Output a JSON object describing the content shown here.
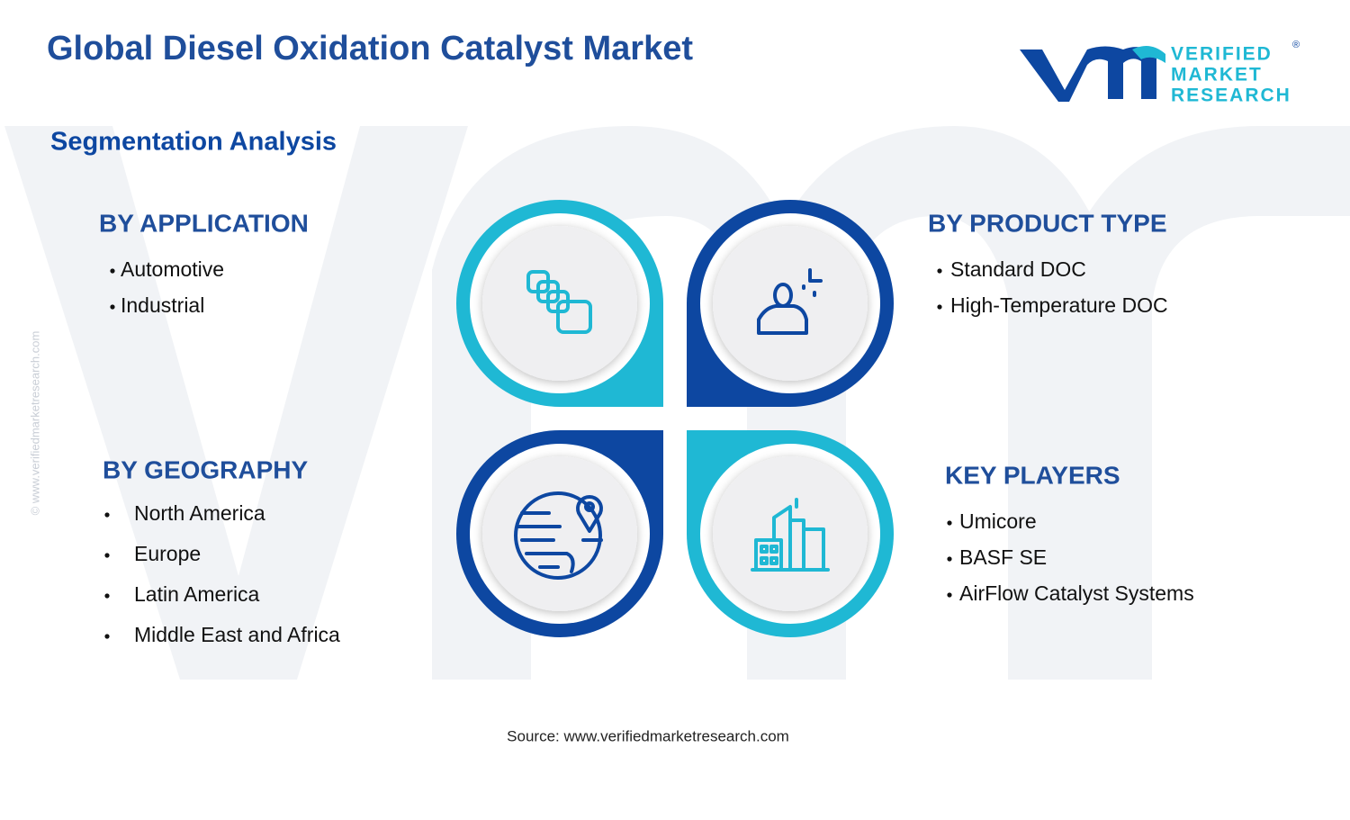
{
  "header": {
    "title": "Global Diesel Oxidation Catalyst Market",
    "subtitle": "Segmentation Analysis"
  },
  "logo": {
    "lines": [
      "VERIFIED",
      "MARKET",
      "RESEARCH"
    ],
    "mark": "®"
  },
  "side_text": "© www.verifiedmarketresearch.com",
  "segments": [
    {
      "title": "BY APPLICATION",
      "items": [
        "Automotive",
        "Industrial"
      ]
    },
    {
      "title": "BY PRODUCT TYPE",
      "items": [
        "Standard DOC",
        "High-Temperature DOC"
      ]
    },
    {
      "title": "BY GEOGRAPHY",
      "items": [
        "North America",
        "Europe",
        "Latin America",
        "Middle East and Africa"
      ]
    },
    {
      "title": "KEY PLAYERS",
      "items": [
        "Umicore",
        "BASF SE",
        "AirFlow Catalyst Systems"
      ]
    }
  ],
  "source": "Source: www.verifiedmarketresearch.com"
}
